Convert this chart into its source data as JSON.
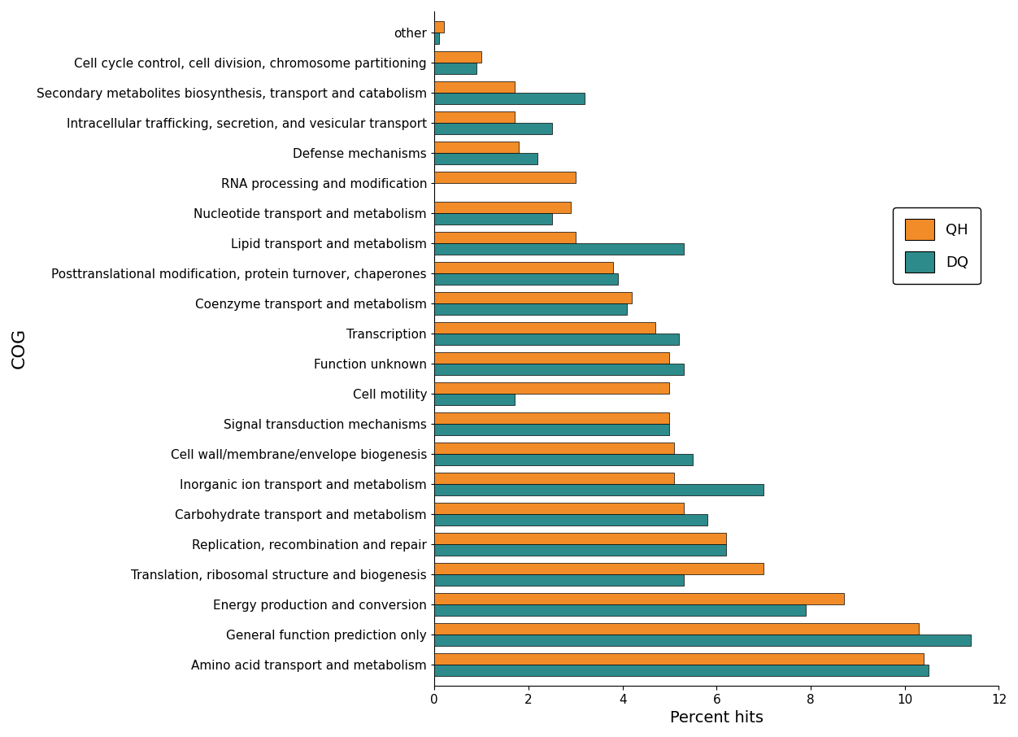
{
  "categories": [
    "Amino acid transport and metabolism",
    "General function prediction only",
    "Energy production and conversion",
    "Translation, ribosomal structure and biogenesis",
    "Replication, recombination and repair",
    "Carbohydrate transport and metabolism",
    "Inorganic ion transport and metabolism",
    "Cell wall/membrane/envelope biogenesis",
    "Signal transduction mechanisms",
    "Cell motility",
    "Function unknown",
    "Transcription",
    "Coenzyme transport and metabolism",
    "Posttranslational modification, protein turnover, chaperones",
    "Lipid transport and metabolism",
    "Nucleotide transport and metabolism",
    "RNA processing and modification",
    "Defense mechanisms",
    "Intracellular trafficking, secretion, and vesicular transport",
    "Secondary metabolites biosynthesis, transport and catabolism",
    "Cell cycle control, cell division, chromosome partitioning",
    "other"
  ],
  "QH": [
    10.4,
    10.3,
    8.7,
    7.0,
    6.2,
    5.3,
    5.1,
    5.1,
    5.0,
    5.0,
    5.0,
    4.7,
    4.2,
    3.8,
    3.0,
    2.9,
    3.0,
    1.8,
    1.7,
    1.7,
    1.0,
    0.2
  ],
  "DQ": [
    10.5,
    11.4,
    7.9,
    5.3,
    6.2,
    5.8,
    7.0,
    5.5,
    5.0,
    1.7,
    5.3,
    5.2,
    4.1,
    3.9,
    5.3,
    2.5,
    0.0,
    2.2,
    2.5,
    3.2,
    0.9,
    0.1
  ],
  "color_QH": "#F28C28",
  "color_DQ": "#2E8B8B",
  "xlabel": "Percent hits",
  "ylabel": "COG",
  "xlim": [
    0,
    12
  ],
  "xticks": [
    0,
    2,
    4,
    6,
    8,
    10,
    12
  ],
  "legend_labels": [
    "QH",
    "DQ"
  ],
  "background_color": "#ffffff",
  "bar_height": 0.38,
  "axis_fontsize": 14,
  "tick_fontsize": 11,
  "legend_fontsize": 13
}
